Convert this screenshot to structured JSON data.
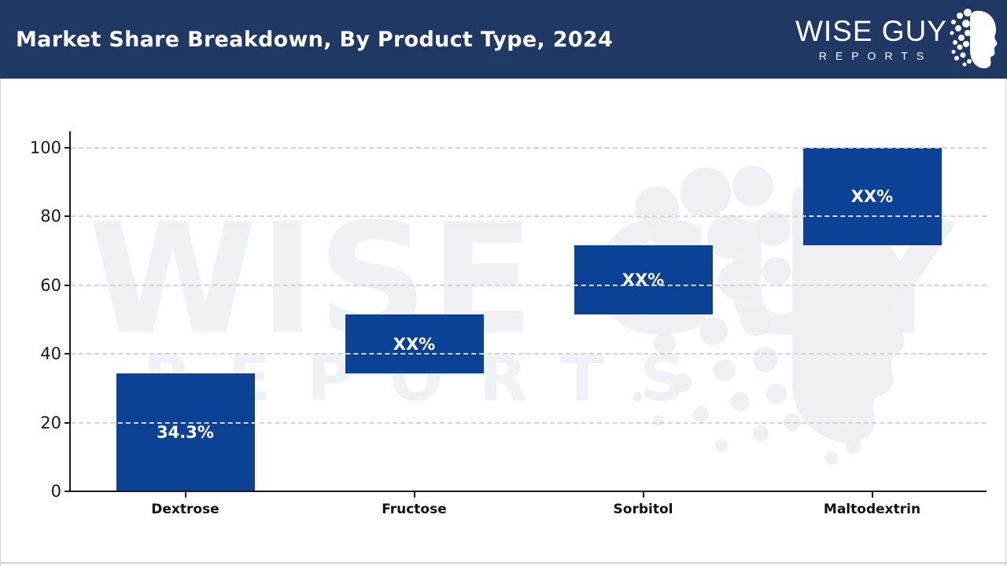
{
  "header": {
    "title": "Market Share Breakdown, By Product Type, 2024",
    "logo": {
      "name": "WISE GUY",
      "sub": "REPORTS"
    }
  },
  "watermark": {
    "line1": "WISE GUY",
    "line2": "REPORTS"
  },
  "chart_data": {
    "type": "waterfall",
    "title": "Market Share Breakdown, By Product Type, 2024",
    "categories": [
      "Dextrose",
      "Fructose",
      "Sorbitol",
      "Maltodextrin"
    ],
    "segments": [
      {
        "category": "Dextrose",
        "start": 0,
        "end": 34.3,
        "label": "34.3%"
      },
      {
        "category": "Fructose",
        "start": 34.3,
        "end": 51.4,
        "label": "XX%"
      },
      {
        "category": "Sorbitol",
        "start": 51.4,
        "end": 71.5,
        "label": "XX%"
      },
      {
        "category": "Maltodextrin",
        "start": 71.5,
        "end": 100,
        "label": "XX%"
      }
    ],
    "ylabel": "",
    "xlabel": "",
    "ylim": [
      0,
      104
    ],
    "yticks": [
      0,
      20,
      40,
      60,
      80,
      100
    ],
    "grid": "horizontal-dashed",
    "legend": "none",
    "bar_color": "#0b4295",
    "bar_label_color": "#ffffff",
    "header_color": "#1f3864"
  }
}
